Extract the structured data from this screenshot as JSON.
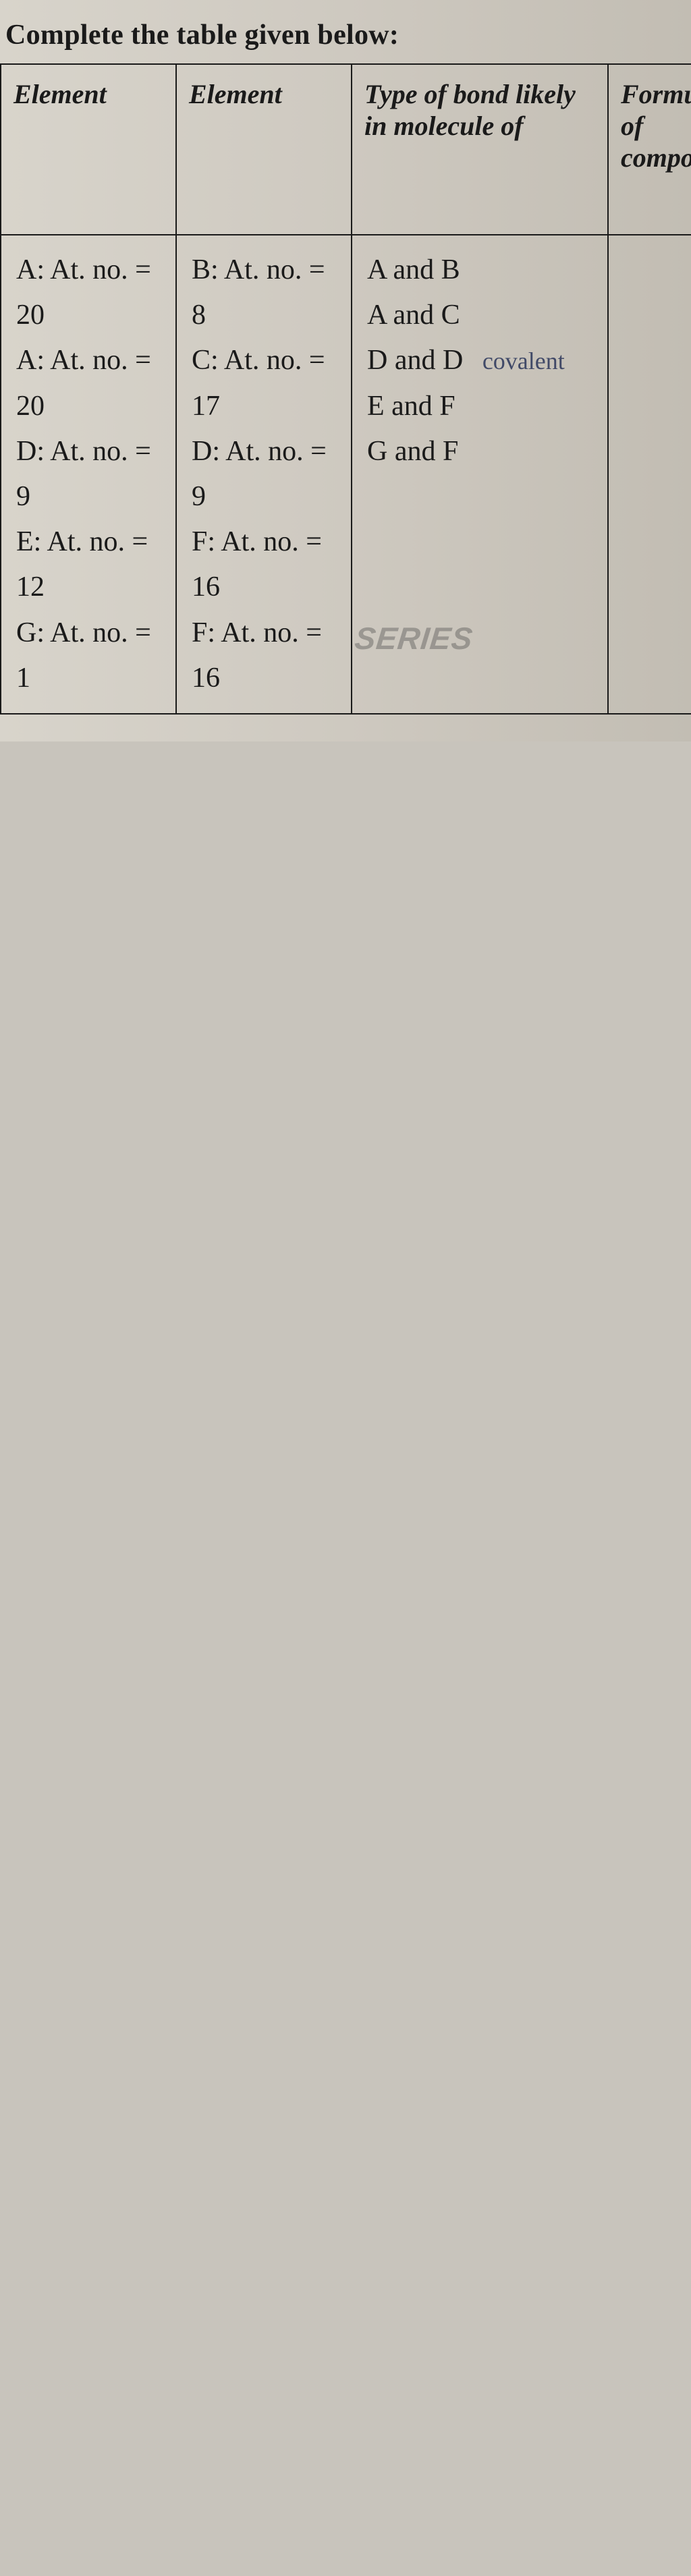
{
  "title": "Complete the table given below:",
  "columns": {
    "c1": "Element",
    "c2": "Element",
    "c3": "Type of bond likely in molecule of",
    "c4": "Formula of compoun"
  },
  "rows_left": [
    "A: At. no. = 20",
    "A: At. no. = 20",
    "D: At. no. = 9",
    "E: At. no. = 12",
    "G: At. no. = 1"
  ],
  "rows_right": [
    "B: At. no. = 8",
    "C: At. no. = 17",
    "D: At. no. = 9",
    "F: At. no. = 16",
    "F: At. no. = 16"
  ],
  "pairs": [
    "A and B",
    "A and C",
    "D and D",
    "E and F",
    "G and F"
  ],
  "handwriting": {
    "row2": "covalent"
  },
  "watermark": "SERIES"
}
